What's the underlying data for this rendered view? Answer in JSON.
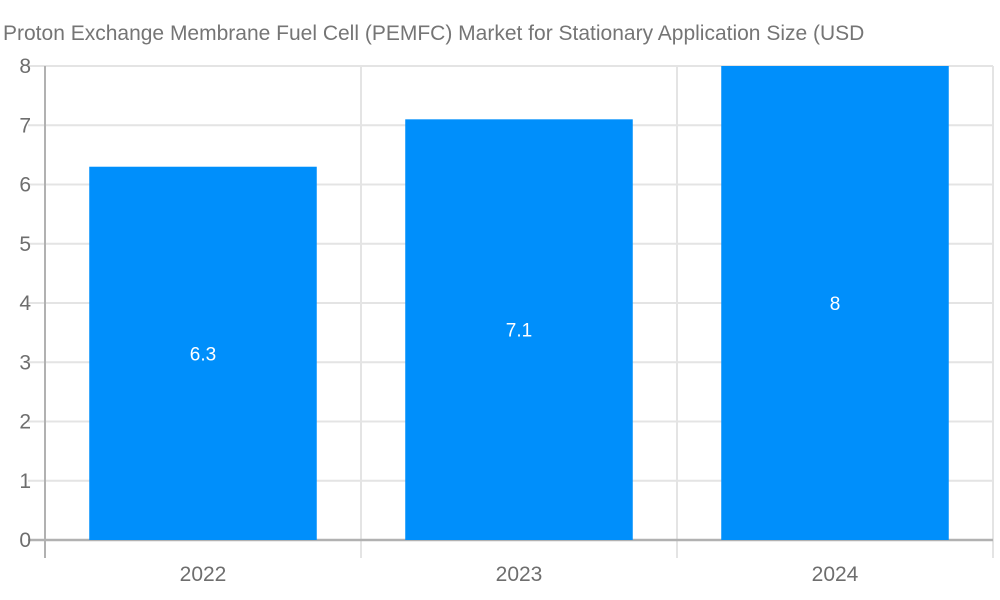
{
  "chart_data": {
    "type": "bar",
    "title": "Proton Exchange Membrane Fuel Cell (PEMFC) Market for Stationary Application Size (USD",
    "categories": [
      "2022",
      "2023",
      "2024"
    ],
    "values": [
      6.3,
      7.1,
      8
    ],
    "data_labels": [
      "6.3",
      "7.1",
      "8"
    ],
    "xlabel": "",
    "ylabel": "",
    "ylim": [
      0,
      8
    ],
    "yticks": [
      0,
      1,
      2,
      3,
      4,
      5,
      6,
      7,
      8
    ],
    "grid": true,
    "legend_position": "none",
    "colors": {
      "bar": "#008ffb",
      "grid": "#e4e4e4",
      "axis": "#b1b1b1",
      "tick_label": "#6e6e6e",
      "title": "#757575",
      "data_label": "#ffffff",
      "background": "#ffffff"
    }
  }
}
